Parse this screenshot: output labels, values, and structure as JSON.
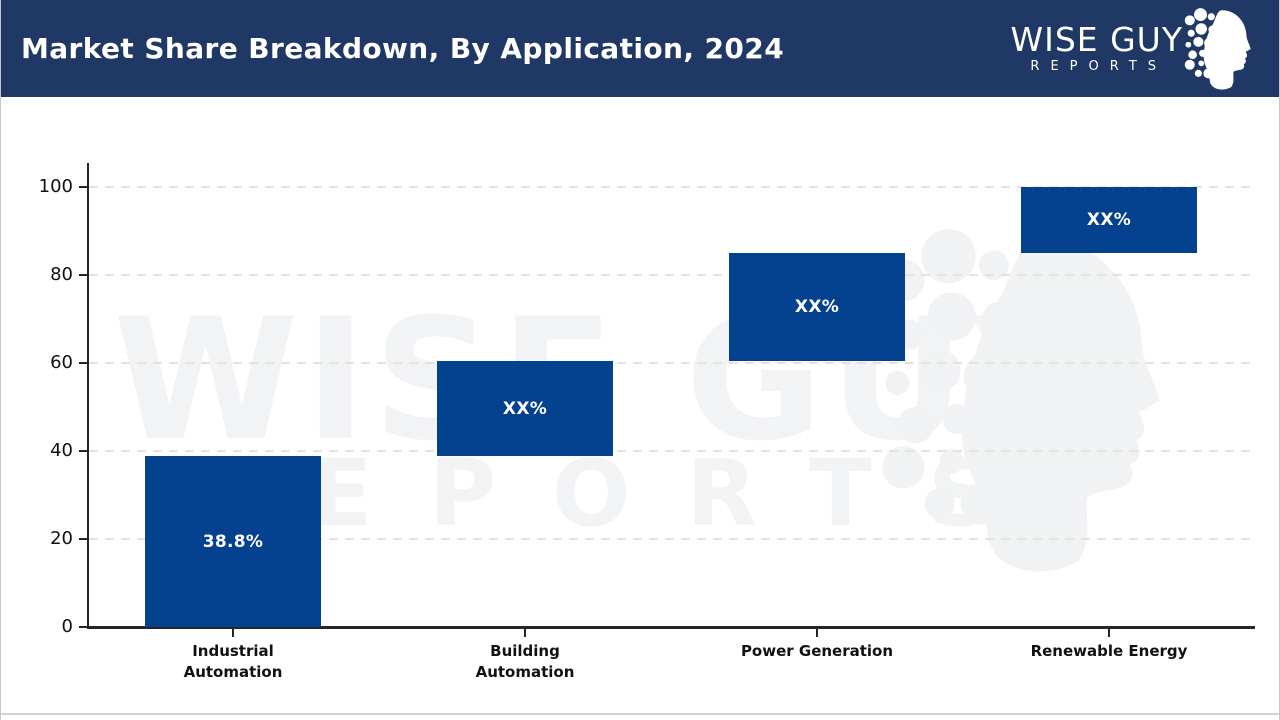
{
  "header": {
    "title": "Market Share Breakdown, By Application, 2024",
    "bg_color": "#1F3865",
    "logo": {
      "wordmark": "WISE GUY",
      "sub": "REPORTS"
    }
  },
  "watermark": {
    "line1": "WISE GUY",
    "line2": "REPORTS"
  },
  "chart_data": {
    "type": "bar",
    "subtype": "waterfall-floating-bars",
    "title": "Market Share Breakdown, By Application, 2024",
    "categories": [
      "Industrial Automation",
      "Building Automation",
      "Power Generation",
      "Renewable Energy"
    ],
    "series": [
      {
        "name": "Market Share",
        "segments": [
          {
            "category": "Industrial Automation",
            "start": 0,
            "end": 38.8,
            "label": "38.8%"
          },
          {
            "category": "Building Automation",
            "start": 38.8,
            "end": 60.5,
            "label": "XX%"
          },
          {
            "category": "Power Generation",
            "start": 60.5,
            "end": 85.1,
            "label": "XX%"
          },
          {
            "category": "Renewable Energy",
            "start": 85.1,
            "end": 100,
            "label": "XX%"
          }
        ]
      }
    ],
    "xlabel": "",
    "ylabel": "",
    "ylim": [
      0,
      105
    ],
    "yticks": [
      0,
      20,
      40,
      60,
      80,
      100
    ],
    "grid": "horizontal-dashed",
    "legend_position": "none",
    "bar_color": "#04418F",
    "bar_label_color": "#FFFFFF",
    "axis_color": "#262626",
    "gridline_color": "#E2E2E2"
  }
}
